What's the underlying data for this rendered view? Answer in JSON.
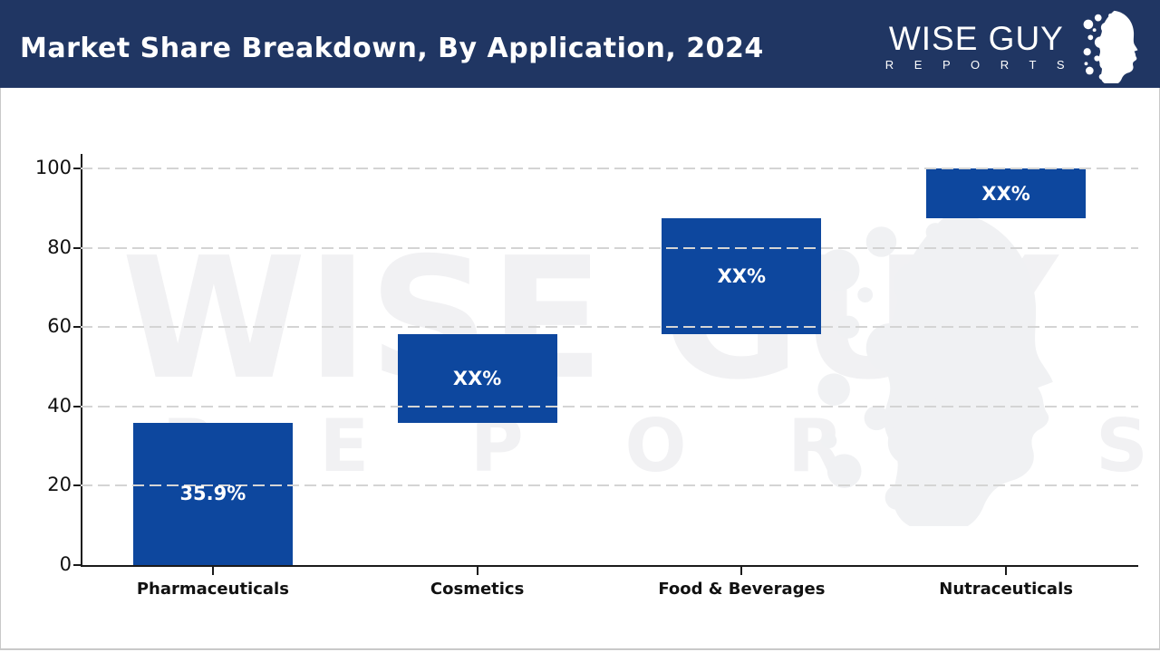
{
  "header": {
    "title": "Market Share Breakdown, By Application, 2024",
    "logo": {
      "line1": "WISE GUY",
      "line2": "R E P O R T S"
    }
  },
  "watermark": {
    "line1": "WISE GUY",
    "line2": "R E P O R T S"
  },
  "chart_data": {
    "type": "bar",
    "subtype": "waterfall-floating-bars",
    "title": "Market Share Breakdown, By Application, 2024",
    "categories": [
      "Pharmaceuticals",
      "Cosmetics",
      "Food & Beverages",
      "Nutraceuticals"
    ],
    "segments": [
      {
        "category": "Pharmaceuticals",
        "start": 0,
        "end": 35.9,
        "label": "35.9%"
      },
      {
        "category": "Cosmetics",
        "start": 35.9,
        "end": 58.2,
        "label": "XX%"
      },
      {
        "category": "Food & Beverages",
        "start": 58.2,
        "end": 87.4,
        "label": "XX%"
      },
      {
        "category": "Nutraceuticals",
        "start": 87.4,
        "end": 100,
        "label": "XX%"
      }
    ],
    "y_ticks": [
      0,
      20,
      40,
      60,
      80,
      100
    ],
    "ylim": [
      0,
      105
    ],
    "grid": "horizontal-dashed",
    "legend": "none",
    "xlabel": "",
    "ylabel": ""
  },
  "colors": {
    "header_bg": "#203663",
    "bar_fill": "#0d479e",
    "bar_label": "#ffffff",
    "gridline": "#d4d4d4",
    "axis": "#1a1a1a",
    "watermark": "#f1f1f3",
    "frame_border": "#c9c9c9"
  }
}
